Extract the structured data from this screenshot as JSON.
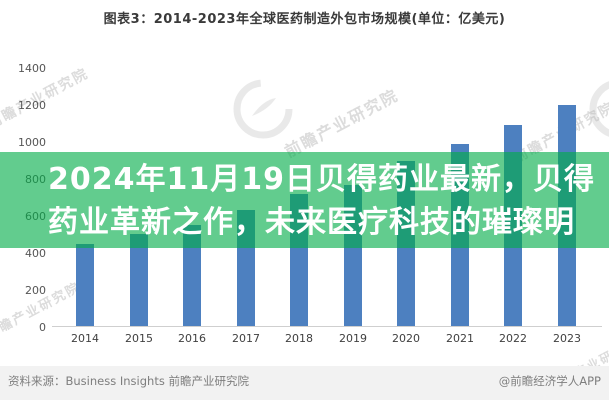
{
  "header": {
    "title": "图表3：2014-2023年全球医药制造外包市场规模(单位：亿美元)"
  },
  "overlay_banner": {
    "line1": "2024年11月19日贝得药业最新，贝得",
    "line2": "药业革新之作，未来医疗科技的璀璨明",
    "bg_color": "rgba(2,172,72,0.62)",
    "text_color": "#ffffff"
  },
  "chart_data": {
    "type": "bar",
    "title": "2014-2023年全球医药制造外包市场规模",
    "unit": "亿美元",
    "categories": [
      "2014",
      "2015",
      "2016",
      "2017",
      "2018",
      "2019",
      "2020",
      "2021",
      "2022",
      "2023"
    ],
    "values": [
      450,
      505,
      550,
      630,
      720,
      765,
      895,
      990,
      1090,
      1200
    ],
    "xlabel": "",
    "ylabel": "",
    "ylim": [
      0,
      1400
    ],
    "ytick_step": 200,
    "grid": false,
    "legend": "none",
    "bar_color": "#4d80c0"
  },
  "footer": {
    "source": "资料来源：Business Insights 前瞻产业研究院",
    "credit": "@前瞻经济学人APP"
  },
  "watermark": {
    "brand": "前瞻产业研究院"
  }
}
